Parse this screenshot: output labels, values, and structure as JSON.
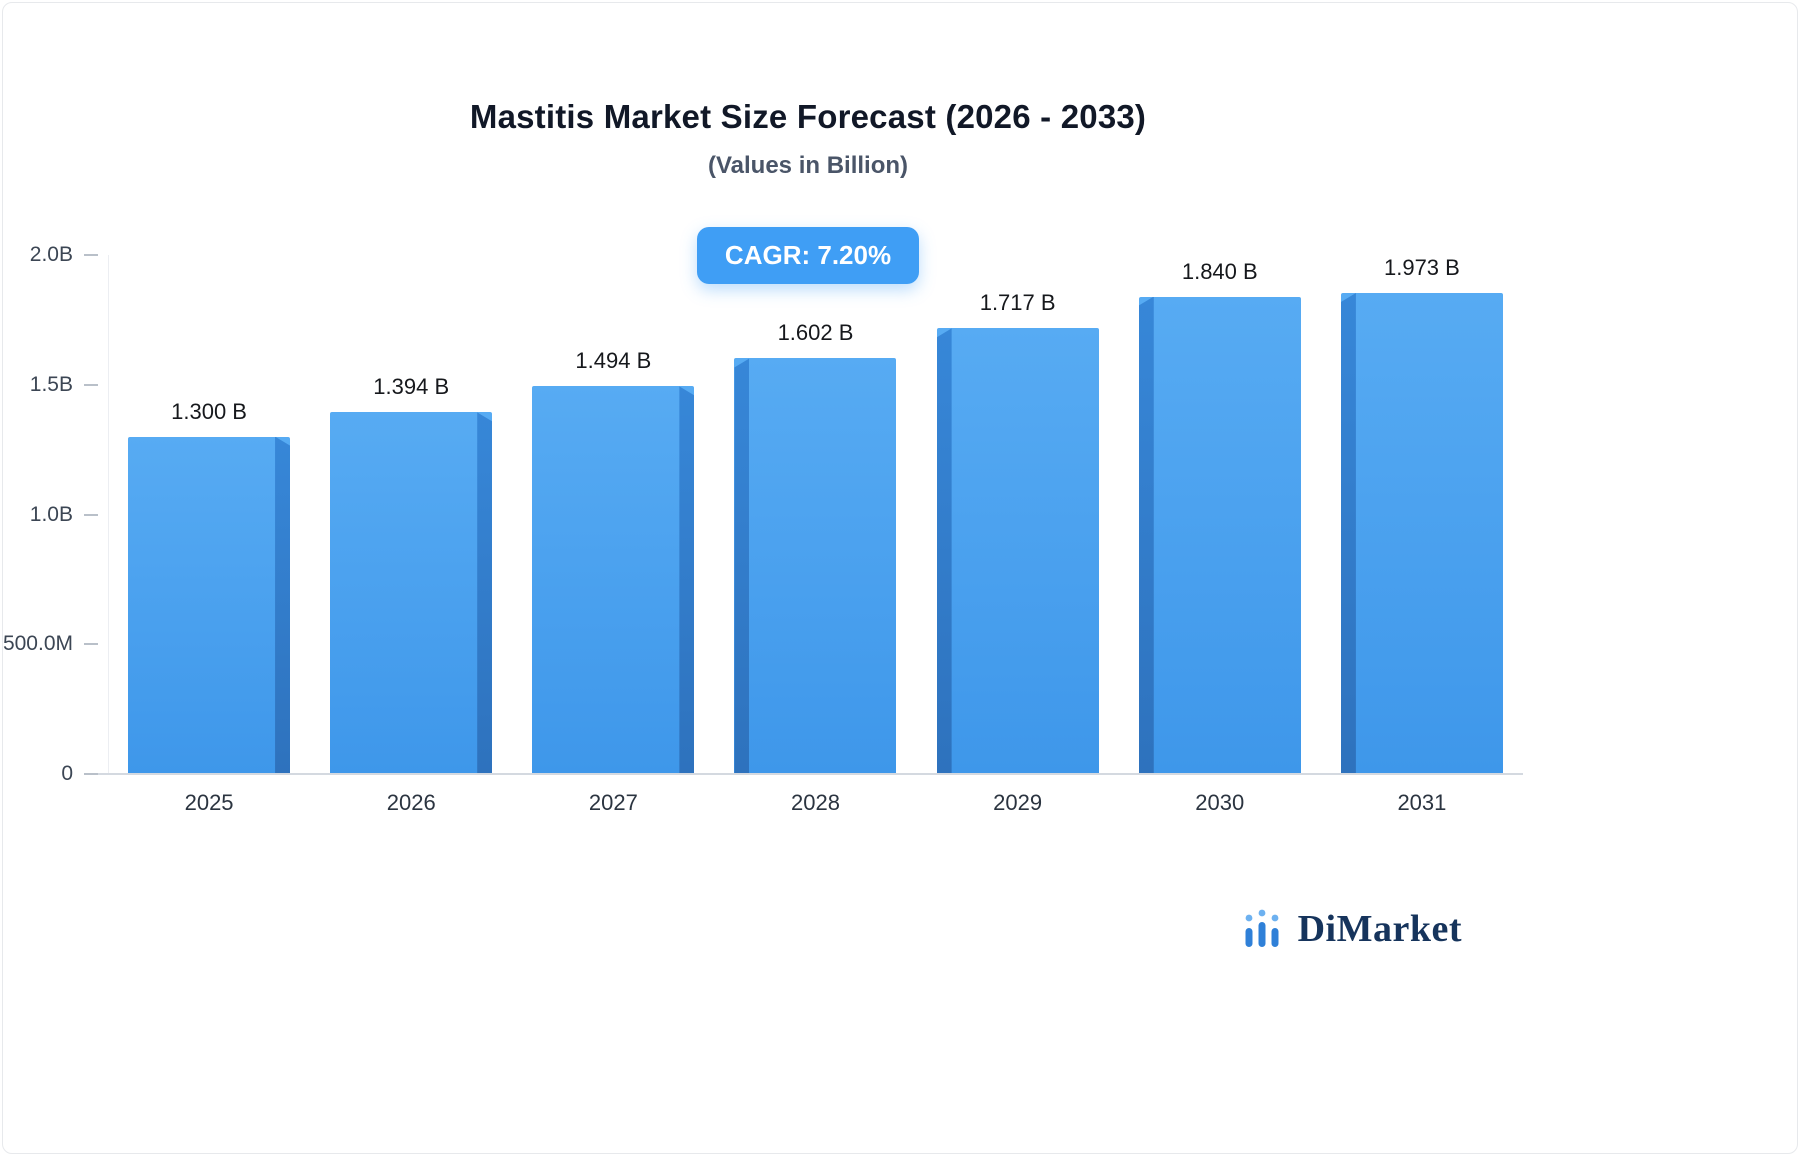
{
  "page": {
    "title": "Mastitis Market Size Forecast (2026 - 2033)",
    "subtitle": "(Values in Billion)",
    "cagr_badge": "CAGR: 7.20%"
  },
  "logo": {
    "text": "DiMarket",
    "icon": "bar-chart-logo-icon"
  },
  "colors": {
    "bar_top": "#57abf3",
    "bar_bottom": "#3e97ea",
    "side_top": "#3787d8",
    "side_bottom": "#2e72bd",
    "badge_bg": "#3f9ef5",
    "axis_line": "#d4d9e0",
    "logo_navy": "#16345c",
    "logo_blue": "#2f80d8",
    "logo_dot_blue": "#6db1f0"
  },
  "chart_data": {
    "type": "bar",
    "title": "Mastitis Market Size Forecast (2026 - 2033)",
    "subtitle": "(Values in Billion)",
    "annotation": "CAGR: 7.20%",
    "categories": [
      "2025",
      "2026",
      "2027",
      "2028",
      "2029",
      "2030",
      "2031"
    ],
    "values": [
      1.3,
      1.394,
      1.494,
      1.602,
      1.717,
      1.84,
      1.973
    ],
    "value_labels": [
      "1.300 B",
      "1.394 B",
      "1.494 B",
      "1.602 B",
      "1.717 B",
      "1.840 B",
      "1.973 B"
    ],
    "ylim": [
      0,
      2.0
    ],
    "yticks": [
      {
        "label": "2.0B",
        "value": 2.0
      },
      {
        "label": "1.5B",
        "value": 1.5
      },
      {
        "label": "1.0B",
        "value": 1.0
      },
      {
        "label": "500.0M",
        "value": 0.5
      },
      {
        "label": "0",
        "value": 0
      }
    ],
    "grid": false,
    "legend": false,
    "legend_position": "none"
  }
}
